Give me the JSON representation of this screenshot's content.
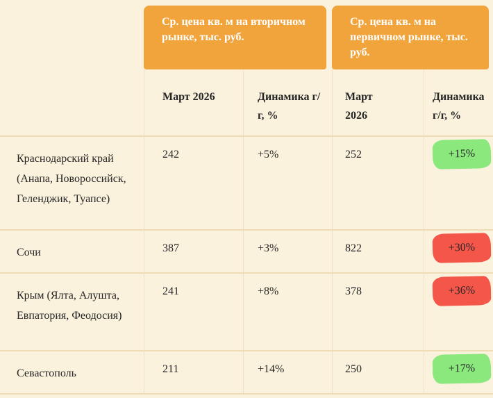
{
  "chart_data": {
    "type": "table",
    "header_groups": [
      {
        "label": "Ср. цена кв. м на вторичном рынке, тыс. руб."
      },
      {
        "label": "Ср. цена кв. м на первичном рынке, тыс. руб."
      }
    ],
    "columns": [
      "Март 2026",
      "Динамика г/г, %",
      "Март 2026",
      "Динамика г/г, %"
    ],
    "rows": [
      {
        "region": "Краснодарский край (Анапа, Новороссийск, Геленджик, Туапсе)",
        "secondary_price": "242",
        "secondary_yoy": "+5%",
        "primary_price": "252",
        "primary_yoy": "+15%",
        "highlight": "green"
      },
      {
        "region": "Сочи",
        "secondary_price": "387",
        "secondary_yoy": "+3%",
        "primary_price": "822",
        "primary_yoy": "+30%",
        "highlight": "red"
      },
      {
        "region": "Крым (Ялта, Алушта, Евпатория, Феодосия)",
        "secondary_price": "241",
        "secondary_yoy": "+8%",
        "primary_price": "378",
        "primary_yoy": "+36%",
        "highlight": "red"
      },
      {
        "region": "Севастополь",
        "secondary_price": "211",
        "secondary_yoy": "+14%",
        "primary_price": "250",
        "primary_yoy": "+17%",
        "highlight": "green"
      }
    ]
  },
  "colors": {
    "background": "#fbf2de",
    "header_orange": "#f1a33c",
    "header_text": "#ffffff",
    "body_text": "#262626",
    "divider": "#eedcb4",
    "green_highlight": "#8ae87d",
    "red_highlight": "#f4574a"
  }
}
